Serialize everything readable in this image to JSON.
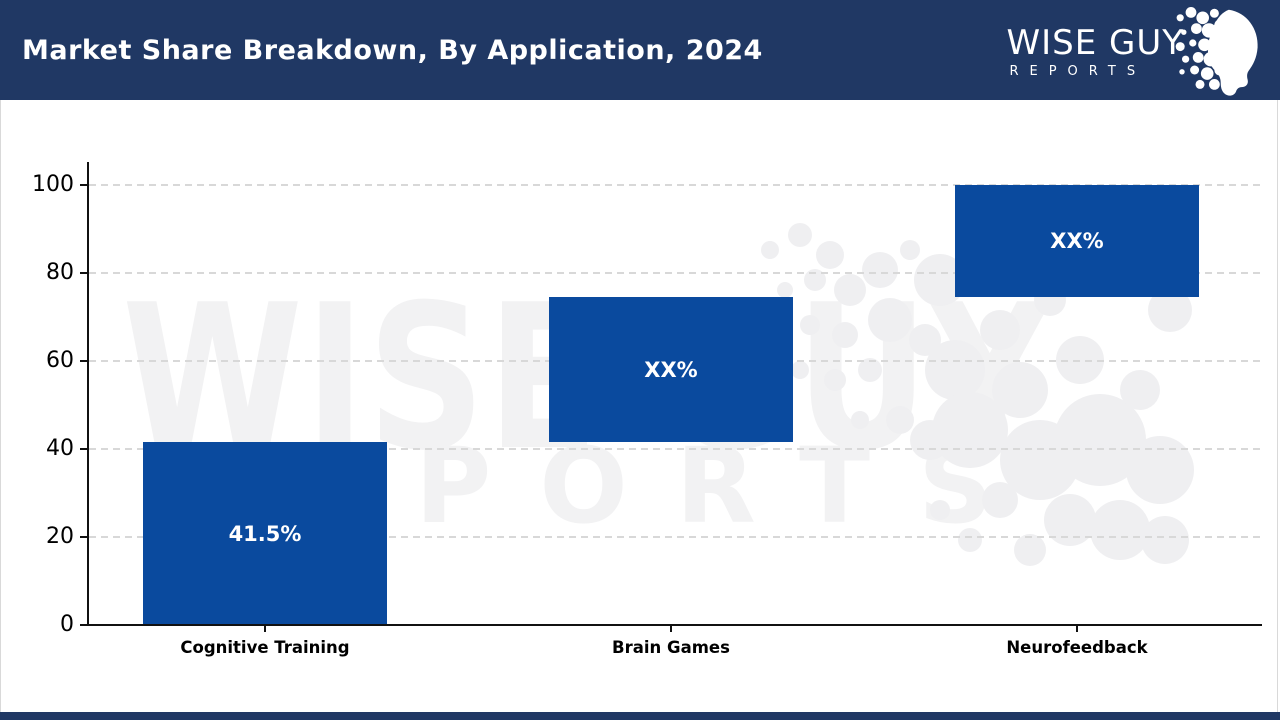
{
  "header": {
    "title": "Market Share Breakdown, By Application, 2024",
    "logo": {
      "line1": "WISE GUY",
      "line2": "REPORTS"
    }
  },
  "watermark": {
    "line1": "WISE GUY",
    "line2": "REPORTS"
  },
  "chart_data": {
    "type": "bar",
    "subtype": "floating-waterfall",
    "title": "Market Share Breakdown, By Application, 2024",
    "categories": [
      "Cognitive Training",
      "Brain Games",
      "Neurofeedback"
    ],
    "segments": [
      {
        "category": "Cognitive Training",
        "base": 0,
        "top": 41.5,
        "value": 41.5,
        "label": "41.5%"
      },
      {
        "category": "Brain Games",
        "base": 41.5,
        "top": 74.5,
        "value": 33.0,
        "label": "XX%"
      },
      {
        "category": "Neurofeedback",
        "base": 74.5,
        "top": 100,
        "value": 25.5,
        "label": "XX%"
      }
    ],
    "xlabel": "",
    "ylabel": "",
    "ylim": [
      0,
      100
    ],
    "yticks": [
      0,
      20,
      40,
      60,
      80,
      100
    ],
    "grid": "horizontal-dashed",
    "legend": "none",
    "bar_color": "#0a4a9e",
    "label_color": "#ffffff"
  },
  "colors": {
    "header_bg": "#203864",
    "footer_bg": "#203864",
    "bar": "#0a4a9e",
    "grid": "#d8d8d8",
    "axis": "#111111",
    "watermark": "#f2f2f3"
  }
}
